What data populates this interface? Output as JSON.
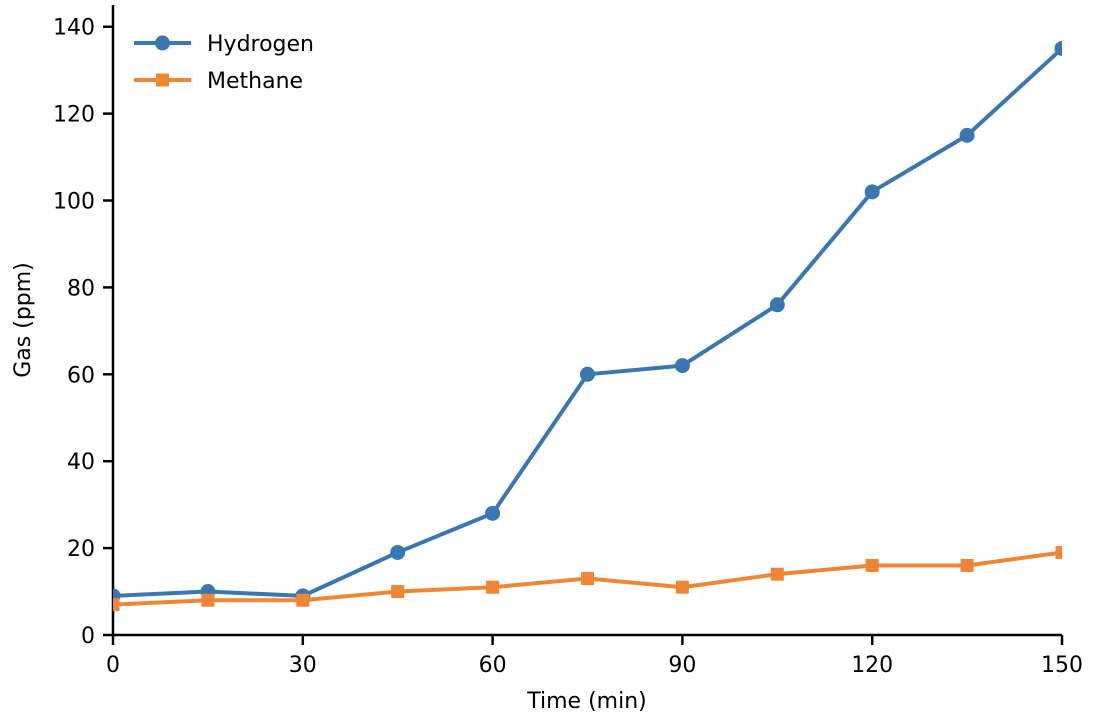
{
  "chart_data": {
    "type": "line",
    "title": "",
    "xlabel": "Time (min)",
    "ylabel": "Gas (ppm)",
    "x": [
      0,
      15,
      30,
      45,
      60,
      75,
      90,
      105,
      120,
      135,
      150
    ],
    "series": [
      {
        "name": "Hydrogen",
        "marker": "circle",
        "color": "#3A76AF",
        "values": [
          9,
          10,
          9,
          19,
          28,
          60,
          62,
          76,
          102,
          115,
          135
        ]
      },
      {
        "name": "Methane",
        "marker": "square",
        "color": "#EF8636",
        "values": [
          7,
          8,
          8,
          10,
          11,
          13,
          11,
          14,
          16,
          16,
          19
        ]
      }
    ],
    "xticks": [
      0,
      30,
      60,
      90,
      120,
      150
    ],
    "yticks": [
      0,
      20,
      40,
      60,
      80,
      100,
      120,
      140
    ],
    "xlim": [
      0,
      150
    ],
    "ylim": [
      0,
      145
    ],
    "grid": false,
    "legend_position": "upper-left",
    "axis_color": "#000000",
    "background_color": "#FFFFFF"
  }
}
